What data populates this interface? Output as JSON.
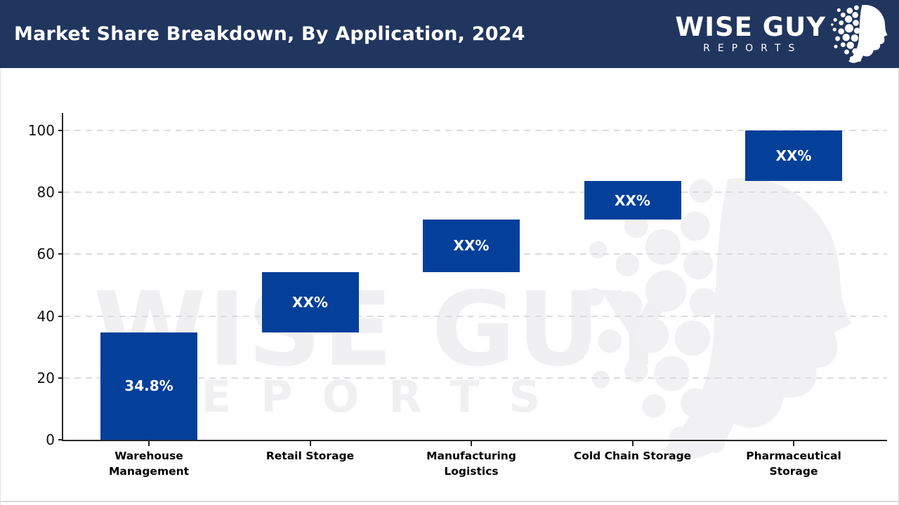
{
  "header": {
    "title": "Market Share Breakdown, By Application, 2024",
    "logo": {
      "line1": "WISE GUY",
      "line2": "REPORTS"
    }
  },
  "watermark": {
    "line1": "WISE GUY",
    "line2": "REPORTS"
  },
  "colors": {
    "header_bg": "#21365E",
    "bar": "#04409A",
    "grid": "#DCDCDC",
    "axis": "#262626",
    "watermark": "#F0F0F2",
    "bar_label": "#FFFFFF"
  },
  "chart_data": {
    "type": "bar",
    "subtype": "waterfall",
    "title": "Market Share Breakdown, By Application, 2024",
    "categories": [
      "Warehouse\nManagement",
      "Retail Storage",
      "Manufacturing\nLogistics",
      "Cold Chain Storage",
      "Pharmaceutical\nStorage"
    ],
    "segments": [
      {
        "category": "Warehouse\nManagement",
        "start": 0,
        "end": 34.8,
        "label": "34.8%"
      },
      {
        "category": "Retail Storage",
        "start": 34.8,
        "end": 54.2,
        "label": "XX%"
      },
      {
        "category": "Manufacturing\nLogistics",
        "start": 54.2,
        "end": 71.2,
        "label": "XX%"
      },
      {
        "category": "Cold Chain Storage",
        "start": 71.2,
        "end": 83.6,
        "label": "XX%"
      },
      {
        "category": "Pharmaceutical\nStorage",
        "start": 83.6,
        "end": 100,
        "label": "XX%"
      }
    ],
    "y_ticks": [
      0,
      20,
      40,
      60,
      80,
      100
    ],
    "ylim": [
      0,
      104.8
    ],
    "xlabel": "",
    "ylabel": "",
    "grid": true,
    "legend": "none"
  }
}
